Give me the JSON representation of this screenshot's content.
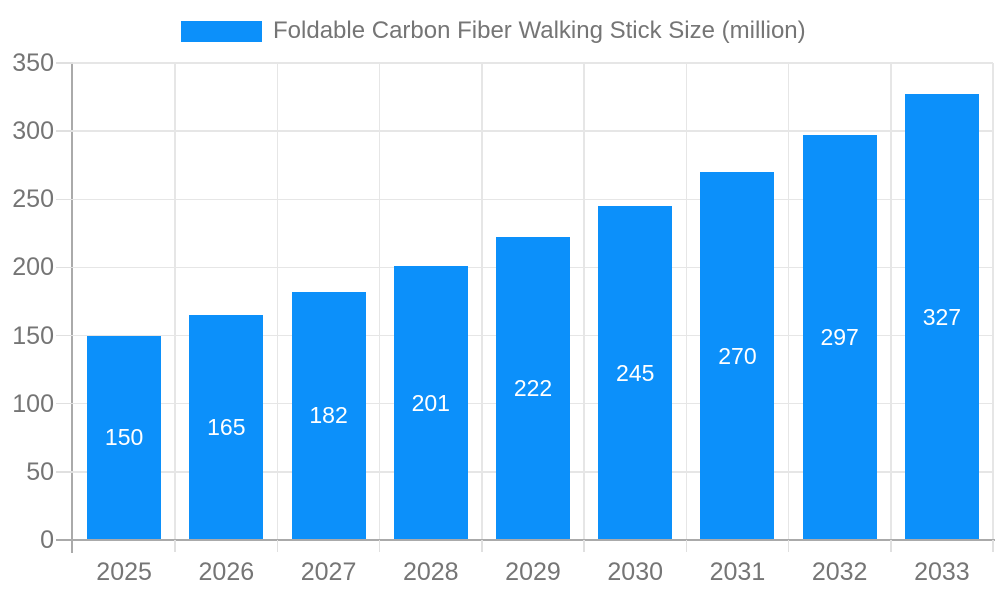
{
  "legend": {
    "position": "top-center",
    "items": [
      {
        "label": "Foldable Carbon Fiber Walking Stick Size (million)",
        "swatch_color": "#0c90fa"
      }
    ]
  },
  "chart_data": {
    "type": "bar",
    "title": "Foldable Carbon Fiber Walking Stick Size (million)",
    "categories": [
      "2025",
      "2026",
      "2027",
      "2028",
      "2029",
      "2030",
      "2031",
      "2032",
      "2033"
    ],
    "series": [
      {
        "name": "Foldable Carbon Fiber Walking Stick Size (million)",
        "values": [
          150,
          165,
          182,
          201,
          222,
          245,
          270,
          297,
          327
        ],
        "color": "#0c90fa"
      }
    ],
    "value_labels": [
      150,
      165,
      182,
      201,
      222,
      245,
      270,
      297,
      327
    ],
    "value_labels_position": "inside-center",
    "xlabel": "",
    "ylabel": "",
    "ylim": [
      0,
      350
    ],
    "yticks": [
      0,
      50,
      100,
      150,
      200,
      250,
      300,
      350
    ],
    "grid": true,
    "legend_position": "top",
    "colors": {
      "bar": "#0c90fa",
      "bar_label": "#ffffff",
      "axis_label": "#757575",
      "legend_text": "#757575",
      "axis_line": "#aaaaaa",
      "grid_line": "#e6e6e6",
      "tick_line": "#e0e0e0",
      "background": "#ffffff"
    }
  }
}
